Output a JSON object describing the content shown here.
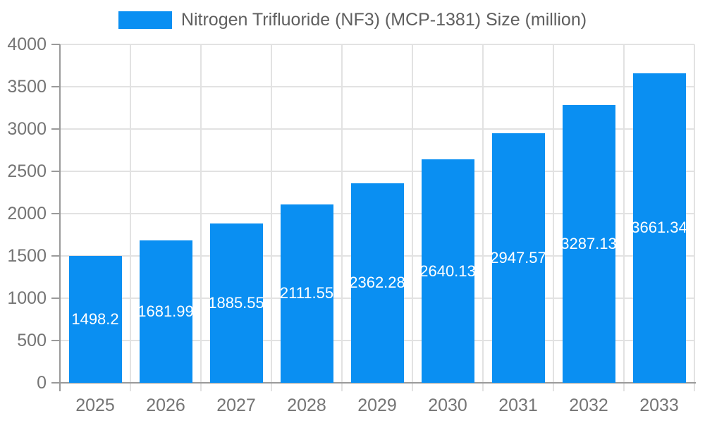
{
  "legend": {
    "label": "Nitrogen Trifluoride (NF3) (MCP-1381) Size (million)"
  },
  "chart_data": {
    "type": "bar",
    "title": "Nitrogen Trifluoride (NF3) (MCP-1381) Size (million)",
    "legend_entries": [
      "Nitrogen Trifluoride (NF3) (MCP-1381) Size (million)"
    ],
    "legend_position": "top",
    "categories": [
      "2025",
      "2026",
      "2027",
      "2028",
      "2029",
      "2030",
      "2031",
      "2032",
      "2033"
    ],
    "series": [
      {
        "name": "Nitrogen Trifluoride (NF3) (MCP-1381) Size (million)",
        "values": [
          1498.2,
          1681.99,
          1885.55,
          2111.55,
          2362.28,
          2640.13,
          2947.57,
          3287.13,
          3661.34
        ]
      }
    ],
    "bar_value_labels": [
      "1498.2",
      "1681.99",
      "1885.55",
      "2111.55",
      "2362.28",
      "2640.13",
      "2947.57",
      "3287.13",
      "3661.34"
    ],
    "xlabel": "",
    "ylabel": "",
    "ylim": [
      0,
      4000
    ],
    "yticks": [
      0,
      500,
      1000,
      1500,
      2000,
      2500,
      3000,
      3500,
      4000
    ],
    "grid": true,
    "colors": {
      "bar": "#0a8ff2",
      "grid": "#e2e2e2",
      "axis": "#9a9a9a",
      "tick_text": "#757575",
      "legend_text": "#5f5f5f",
      "value_label": "#ffffff",
      "background": "#ffffff"
    }
  }
}
